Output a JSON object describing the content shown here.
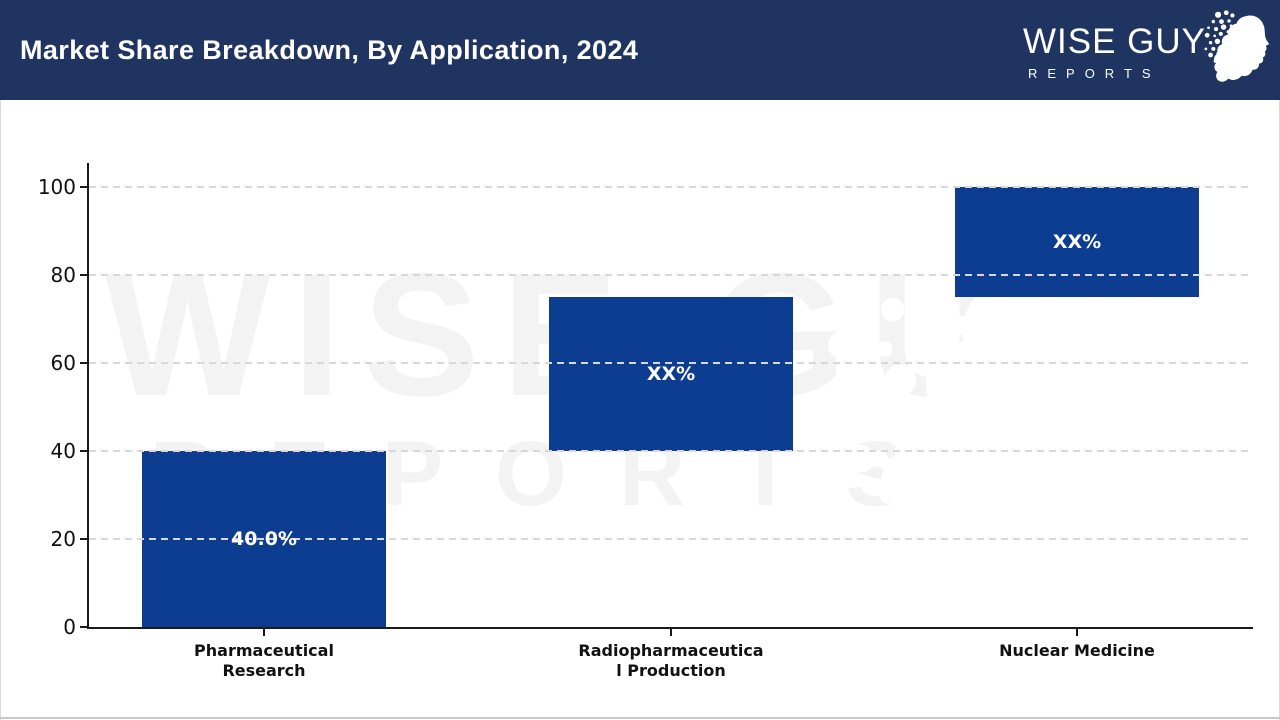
{
  "header": {
    "title": "Market Share Breakdown, By Application, 2024",
    "logo": {
      "name_line": "WISE GUY",
      "sub_line": "REPORTS"
    }
  },
  "watermark": {
    "line1": "WISE GUY",
    "line2": "REPORTS"
  },
  "chart_data": {
    "type": "bar",
    "subtype": "floating-segment-waterfall",
    "title": "Market Share Breakdown, By Application, 2024",
    "categories": [
      "Pharmaceutical Research",
      "Radiopharmaceutical Production",
      "Nuclear Medicine"
    ],
    "category_label_lines": [
      [
        "Pharmaceutical",
        "Research"
      ],
      [
        "Radiopharmaceutica",
        "l Production"
      ],
      [
        "Nuclear Medicine"
      ]
    ],
    "bars": [
      {
        "category": "Pharmaceutical Research",
        "start": 0,
        "end": 40,
        "value_label": "40.0%"
      },
      {
        "category": "Radiopharmaceutical Production",
        "start": 40,
        "end": 75,
        "value_label": "XX%"
      },
      {
        "category": "Nuclear Medicine",
        "start": 75,
        "end": 100,
        "value_label": "XX%"
      }
    ],
    "yticks": [
      0,
      20,
      40,
      60,
      80,
      100
    ],
    "ylim": [
      0,
      105
    ],
    "xlabel": "",
    "ylabel": "",
    "grid": "horizontal-dashed",
    "legend": "none"
  },
  "colors": {
    "header_bg": "#203462",
    "bar": "#0d3d91",
    "bar_value_label": "#ffffff",
    "gridline": "#d8d8d8",
    "axis": "#1a1a1a",
    "tick_label": "#111111",
    "watermark": "#f3f3f3",
    "title_text": "#ffffff"
  }
}
